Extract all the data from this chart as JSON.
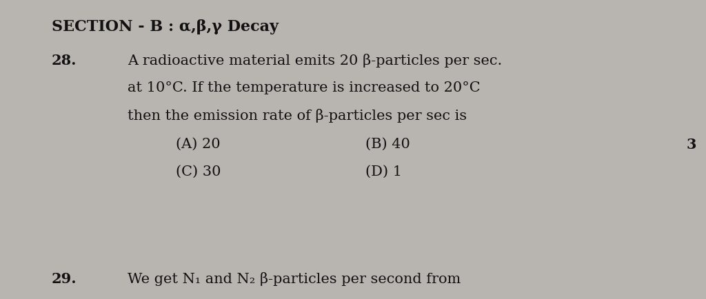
{
  "background_color": "#b8b4b0",
  "section_title_bold": "SECTION - B : ",
  "section_title_greek": "α, β, γ ",
  "section_title_end": "Decay",
  "q28_number": "28.",
  "q28_line1": "A radioactive material emits 20 β-particles per sec.",
  "q28_line2": "at 10°C. If the temperature is increased to 20°C",
  "q28_line3": "then the emission rate of β-particles per sec is",
  "opt_A": "(A) 20",
  "opt_B": "(B) 40",
  "opt_C": "(C) 30",
  "opt_D": "(D) 1",
  "side_number": "3",
  "q29_number": "29.",
  "q29_line1": "We get N₁ and N₂ β-particles per second from",
  "text_color": "#111111",
  "title_fontsize": 16,
  "body_fontsize": 15,
  "option_fontsize": 15,
  "q29_fontsize": 15
}
